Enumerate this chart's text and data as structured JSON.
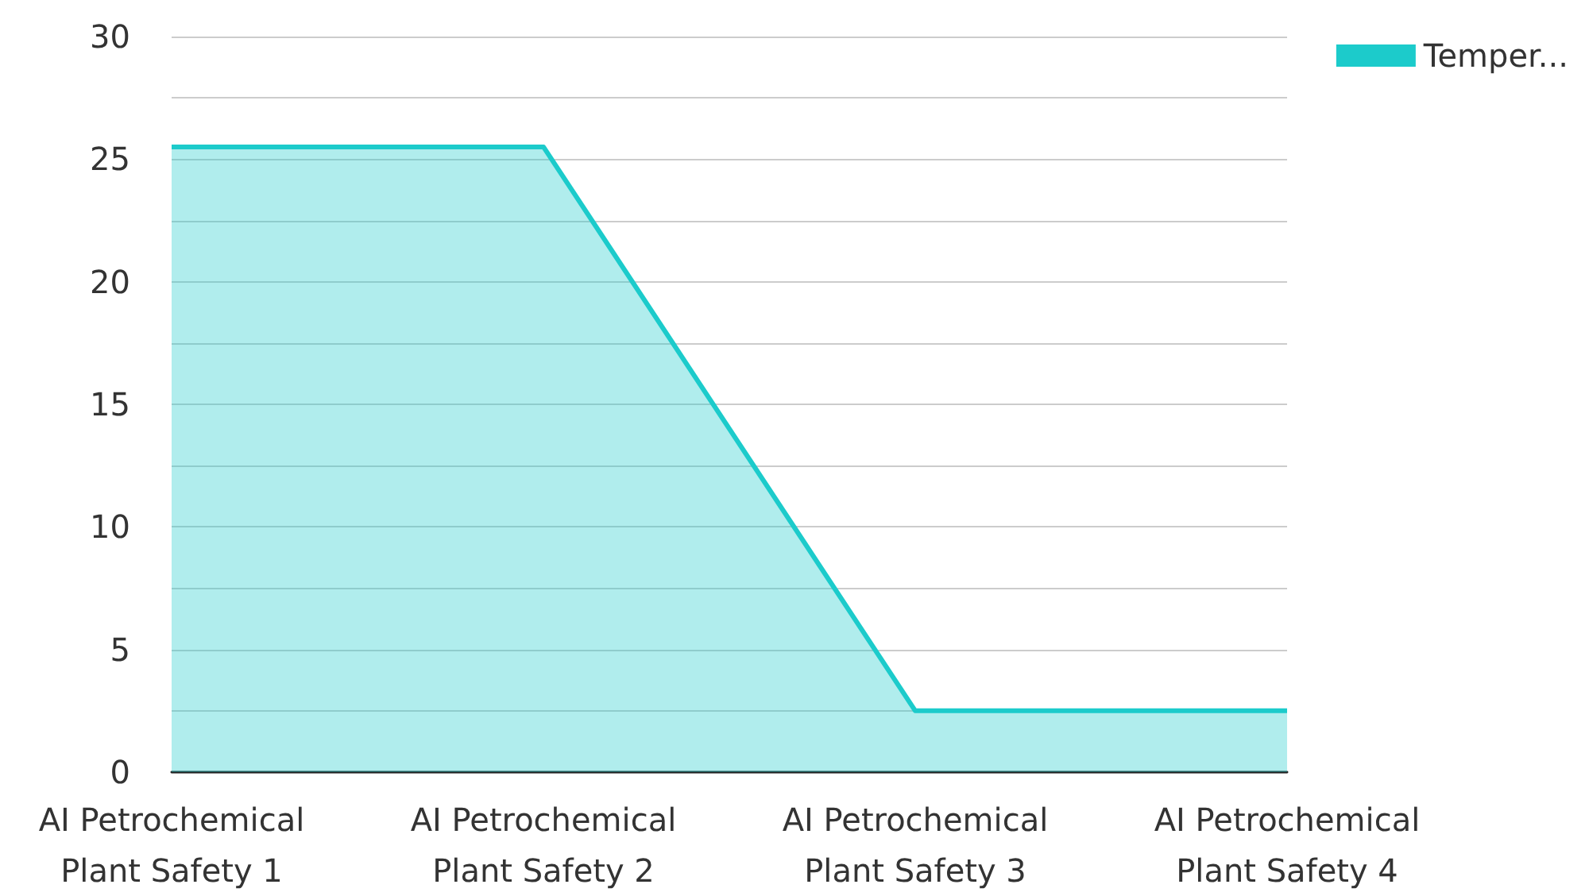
{
  "chart_data": {
    "type": "area",
    "categories": [
      "AI Petrochemical\nPlant Safety 1",
      "AI Petrochemical\nPlant Safety 2",
      "AI Petrochemical\nPlant Safety 3",
      "AI Petrochemical\nPlant Safety 4"
    ],
    "series": [
      {
        "name": "Temper...",
        "color": "#1ccbcb",
        "values": [
          25.5,
          25.5,
          2.5,
          2.5
        ]
      }
    ],
    "ylim": [
      0,
      30
    ],
    "yticks": [
      0,
      {
        "value": 2.5,
        "label": null
      },
      5,
      {
        "value": 7.5,
        "label": null
      },
      10,
      {
        "value": 12.5,
        "label": null
      },
      15,
      {
        "value": 17.5,
        "label": null
      },
      20,
      {
        "value": 22.5,
        "label": null
      },
      25,
      {
        "value": 27.5,
        "label": null
      },
      30
    ],
    "grid": "y",
    "legend": "top right"
  }
}
